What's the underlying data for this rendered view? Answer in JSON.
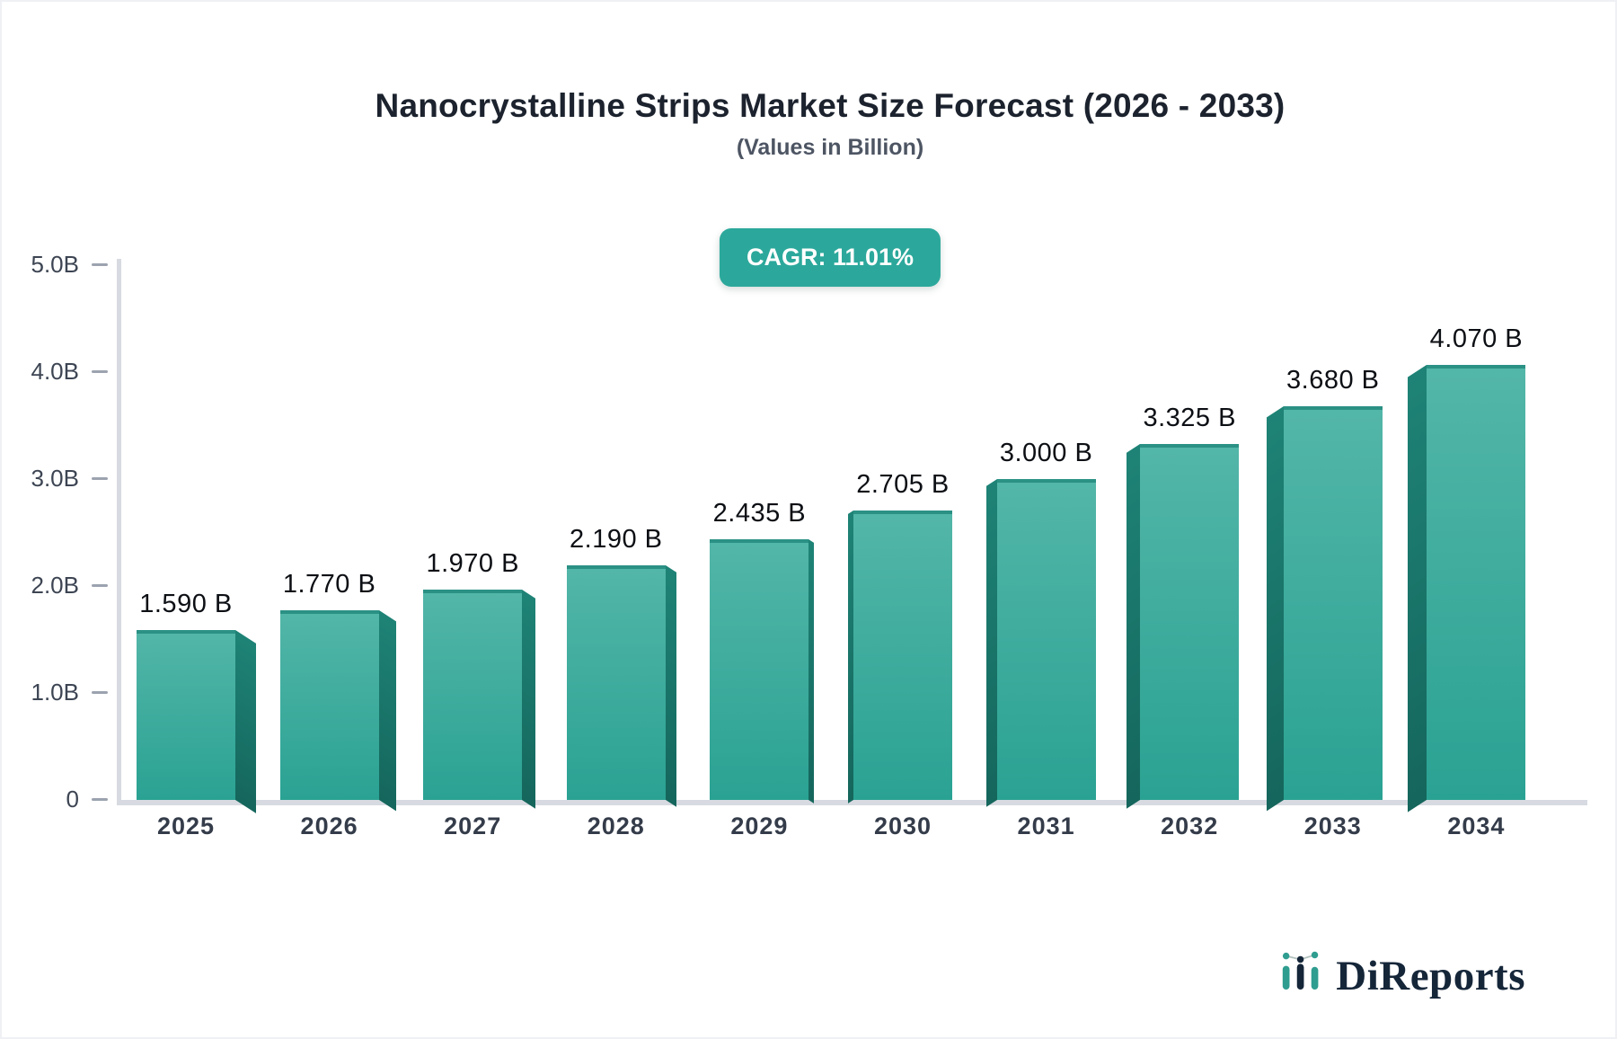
{
  "page": {
    "title": "Nanocrystalline Strips Market Size Forecast (2026 - 2033)",
    "subtitle": "(Values in Billion)"
  },
  "badge": {
    "label": "CAGR: 11.01%"
  },
  "chart_data": {
    "type": "bar",
    "title": "Nanocrystalline Strips Market Size Forecast (2026 - 2033)",
    "subtitle": "(Values in Billion)",
    "cagr_label": "CAGR: 11.01%",
    "categories": [
      "2025",
      "2026",
      "2027",
      "2028",
      "2029",
      "2030",
      "2031",
      "2032",
      "2033",
      "2034"
    ],
    "values": [
      1.59,
      1.77,
      1.97,
      2.19,
      2.435,
      2.705,
      3.0,
      3.325,
      3.68,
      4.07
    ],
    "value_labels": [
      "1.590 B",
      "1.770 B",
      "1.970 B",
      "2.190 B",
      "2.435 B",
      "2.705 B",
      "3.000 B",
      "3.325 B",
      "3.680 B",
      "4.070 B"
    ],
    "xlabel": "",
    "ylabel": "",
    "ylim": [
      0,
      5
    ],
    "yticks": [
      "5.0B",
      "4.0B",
      "3.0B",
      "2.0B",
      "1.0B",
      "0"
    ],
    "grid": false,
    "legend": false,
    "bar_style": "3d-perspective-teal"
  },
  "logo": {
    "text": "DiReports"
  },
  "colors": {
    "badge_bg": "#2BA89B",
    "bar_top": "#53B6A8",
    "bar_bottom": "#2AA293",
    "bar_cap": "#2B9185",
    "side_top": "#1E8376",
    "side_bottom": "#15665C",
    "axis_line": "#D7DAE1",
    "tick_dash": "#9CA3AF",
    "axis_label": "#3D4553",
    "year_label": "#343C4A",
    "value_label": "#0C0F14",
    "title": "#1C232E",
    "subtitle": "#4D5563",
    "logo_navy": "#152639",
    "logo_teal": "#2F9D90",
    "canvas": "#FFFFFF",
    "frame": "#EEF0F4"
  }
}
